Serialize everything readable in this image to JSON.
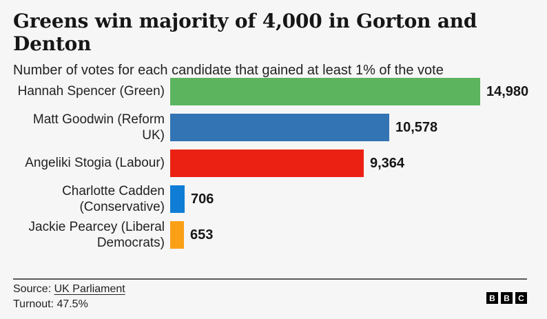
{
  "header": {
    "title": "Greens win majority of 4,000 in Gorton and Denton",
    "subtitle": "Number of votes for each candidate that gained at least 1% of the vote"
  },
  "chart_data": {
    "type": "bar",
    "orientation": "horizontal",
    "title": "Greens win majority of 4,000 in Gorton and Denton",
    "subtitle": "Number of votes for each candidate that gained at least 1% of the vote",
    "categories": [
      "Hannah Spencer (Green)",
      "Matt Goodwin (Reform UK)",
      "Angeliki Stogia (Labour)",
      "Charlotte Cadden (Conservative)",
      "Jackie Pearcey (Liberal Democrats)"
    ],
    "parties": [
      "Green",
      "Reform UK",
      "Labour",
      "Conservative",
      "Liberal Democrats"
    ],
    "values": [
      14980,
      10578,
      9364,
      706,
      653
    ],
    "value_labels": [
      "14,980",
      "10,578",
      "9,364",
      "706",
      "653"
    ],
    "bar_colors": [
      "#5cb45e",
      "#3274b4",
      "#eb2114",
      "#0f7dd5",
      "#faa017"
    ],
    "xlim": [
      0,
      14980
    ],
    "grid": false,
    "legend": "none",
    "value_label_position": "right-of-bar"
  },
  "footer": {
    "source_label": "Source:",
    "source_link": "UK Parliament",
    "turnout": "Turnout: 47.5%"
  },
  "logo": {
    "letters": [
      "B",
      "B",
      "C"
    ]
  },
  "colors": {
    "background": "#f6f6f6",
    "text": "#222222",
    "title": "#161616",
    "divider": "#5a5a5a",
    "green": "#5cb45e",
    "reform_blue": "#3274b4",
    "labour_red": "#eb2114",
    "conservative_blue": "#0f7dd5",
    "libdem_orange": "#faa017"
  }
}
